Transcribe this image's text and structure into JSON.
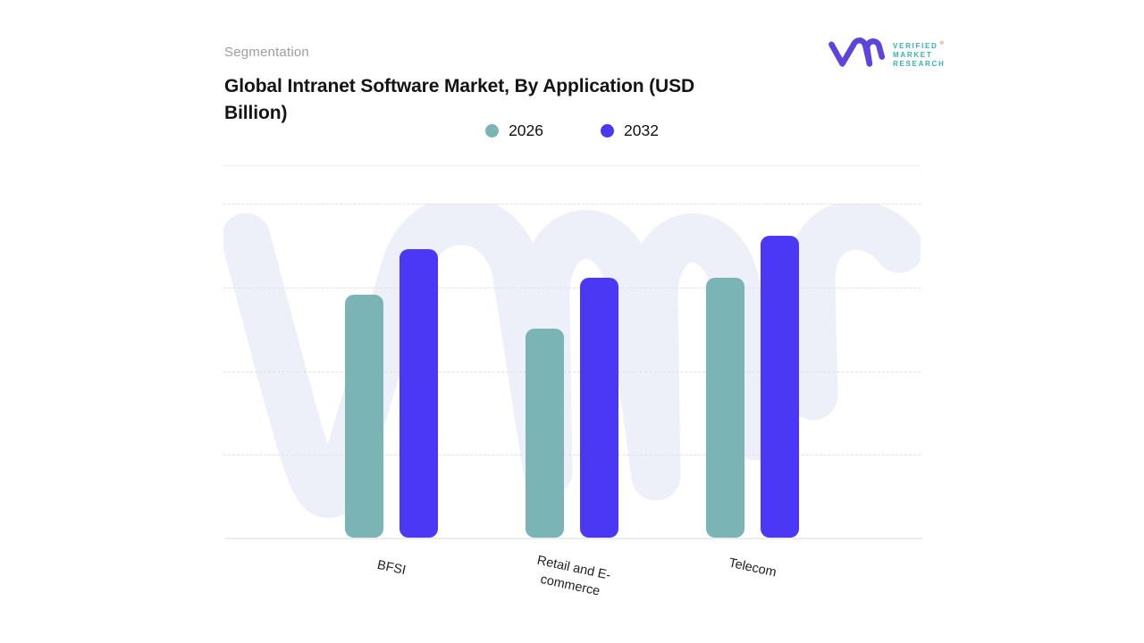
{
  "header": {
    "eyebrow": "Segmentation",
    "title": "Global Intranet Software Market, By Application (USD Billion)"
  },
  "logo": {
    "lines": [
      "VERIFIED",
      "MARKET",
      "RESEARCH"
    ],
    "registered_mark": "®",
    "glyph_color": "#5b45dd",
    "text_color": "#35b3b0",
    "mark_color": "#dd8a4e"
  },
  "legend": [
    {
      "label": "2026",
      "color": "#7ab4b5"
    },
    {
      "label": "2032",
      "color": "#4a38f4"
    }
  ],
  "chart_data": {
    "type": "bar",
    "title": "Global Intranet Software Market, By Application (USD Billion)",
    "categories": [
      "BFSI",
      "Retail and E-commerce",
      "Telecom"
    ],
    "series": [
      {
        "name": "2026",
        "color": "#7ab4b5",
        "values": [
          2.9,
          2.5,
          3.1
        ]
      },
      {
        "name": "2032",
        "color": "#4a38f4",
        "values": [
          3.45,
          3.1,
          3.6
        ]
      }
    ],
    "xlabel": "",
    "ylabel": "",
    "ylim": [
      0,
      4
    ],
    "y_axis_labels_visible": false,
    "value_note": "no y-axis tick labels shown; values estimated in gridline units from dashed horizontal gridlines",
    "grid": "horizontal-dashed",
    "legend_position": "top-center",
    "x_label_rotation_deg": 12
  },
  "watermark": {
    "label": "vmr-watermark",
    "color": "#eef0f9"
  }
}
